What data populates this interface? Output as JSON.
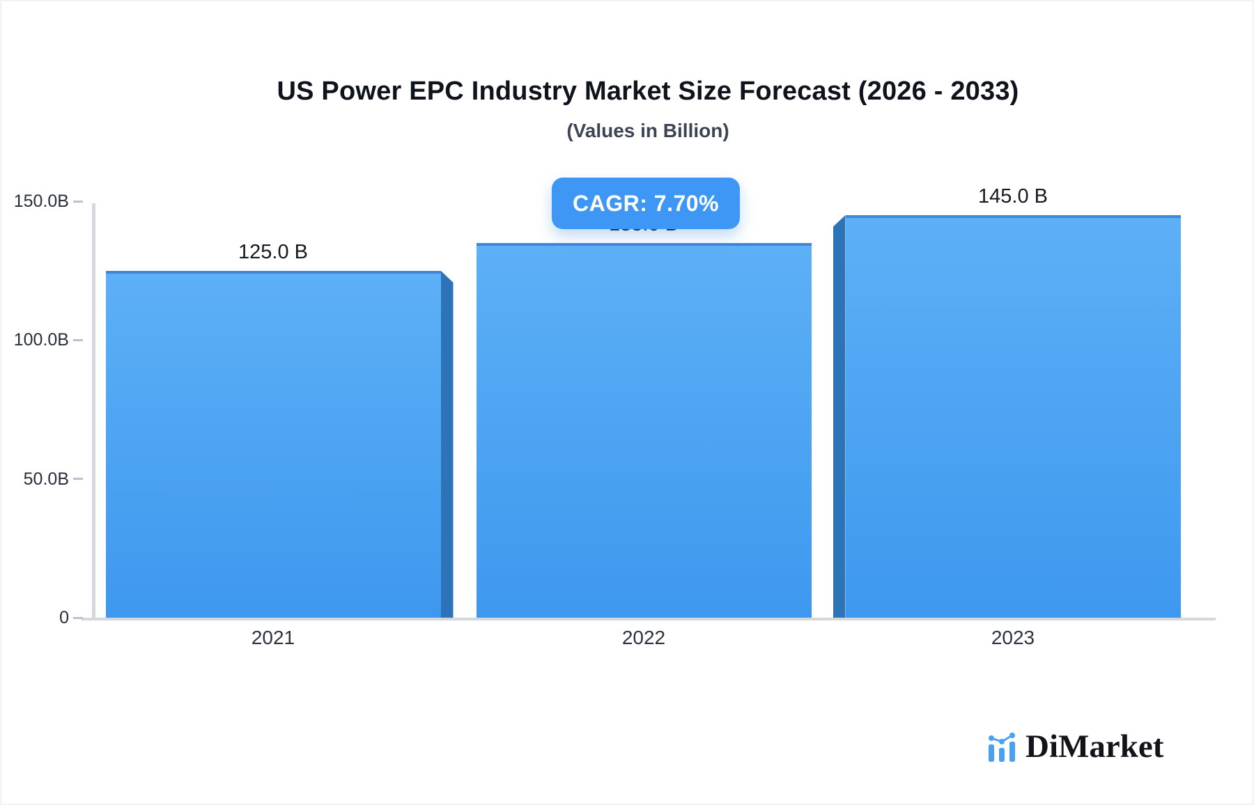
{
  "header": {
    "title": "US Power EPC Industry Market Size Forecast (2026 - 2033)",
    "subtitle": "(Values in Billion)"
  },
  "badge": {
    "text": "CAGR: 7.70%"
  },
  "chart_data": {
    "type": "bar",
    "title": "US Power EPC Industry Market Size Forecast (2026 - 2033)",
    "subtitle": "(Values in Billion)",
    "categories": [
      "2021",
      "2022",
      "2023"
    ],
    "values": [
      125.0,
      135.0,
      145.0
    ],
    "value_labels": [
      "125.0 B",
      "135.0 B",
      "145.0 B"
    ],
    "cagr_label": "CAGR: 7.70%",
    "ylim": [
      0,
      150
    ],
    "yticks": [
      {
        "value": 0,
        "label": "0"
      },
      {
        "value": 50,
        "label": "50.0B"
      },
      {
        "value": 100,
        "label": "100.0B"
      },
      {
        "value": 150,
        "label": "150.0B"
      }
    ],
    "grid": false,
    "legend": false,
    "depth_side": [
      "right",
      "none",
      "left"
    ]
  },
  "footer": {
    "brand": "DiMarket"
  },
  "colors": {
    "bar_top": "#5db0f6",
    "bar_bottom": "#3e98ef",
    "bar_edge": "#3d86d8",
    "bar_side": "#2d73b7",
    "badge_bg": "#3e97f4",
    "axis_line": "#d4d7dd",
    "logo_blue": "#4aa1f4"
  }
}
